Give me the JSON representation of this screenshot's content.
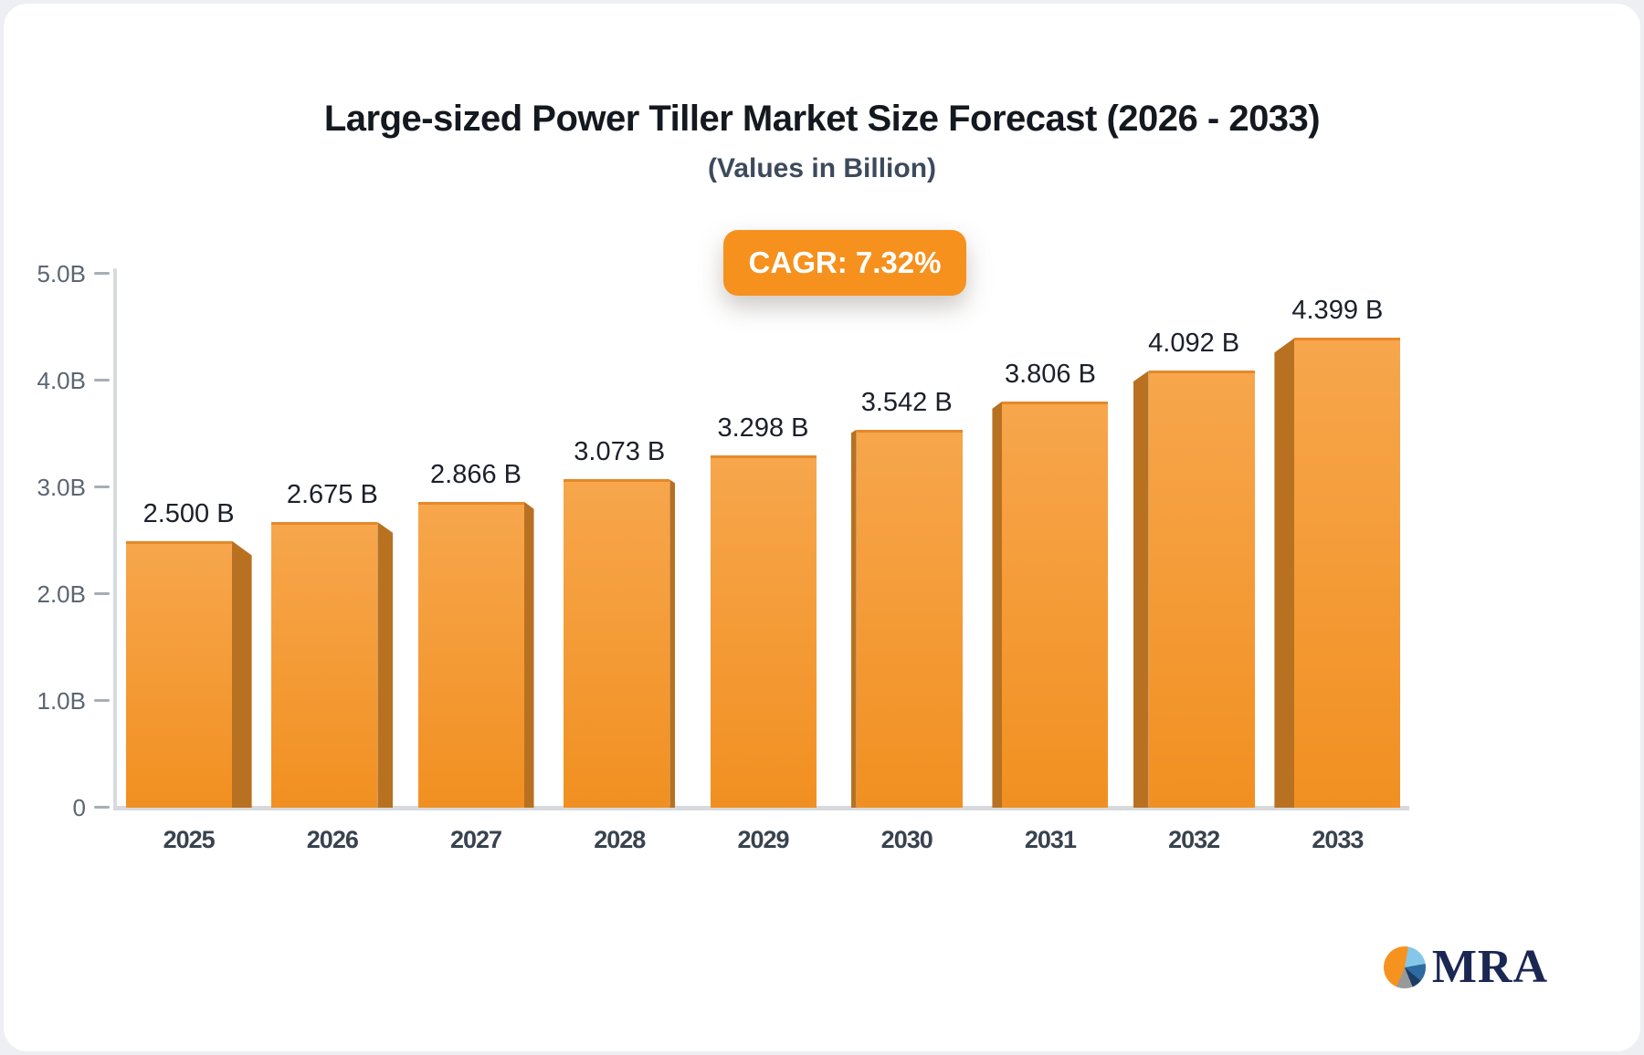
{
  "header": {
    "title": "Large-sized Power Tiller Market Size Forecast (2026 - 2033)",
    "subtitle": "(Values in Billion)"
  },
  "badge": {
    "label": "CAGR: 7.32%",
    "color": "#f6911e"
  },
  "chart_data": {
    "type": "bar",
    "title": "Large-sized Power Tiller Market Size Forecast (2026 - 2033)",
    "subtitle": "(Values in Billion)",
    "unit": "Billion",
    "categories": [
      "2025",
      "2026",
      "2027",
      "2028",
      "2029",
      "2030",
      "2031",
      "2032",
      "2033"
    ],
    "values": [
      2.5,
      2.675,
      2.866,
      3.073,
      3.298,
      3.542,
      3.806,
      4.092,
      4.399
    ],
    "data_labels": [
      "2.500 B",
      "2.675 B",
      "2.866 B",
      "3.073 B",
      "3.298 B",
      "3.542 B",
      "3.806 B",
      "4.092 B",
      "4.399 B"
    ],
    "ylim": [
      0,
      5
    ],
    "y_ticks": [
      {
        "label": "5.0B",
        "value": 5.0
      },
      {
        "label": "4.0B",
        "value": 4.0
      },
      {
        "label": "3.0B",
        "value": 3.0
      },
      {
        "label": "2.0B",
        "value": 2.0
      },
      {
        "label": "1.0B",
        "value": 1.0
      },
      {
        "label": "0",
        "value": 0.0
      }
    ],
    "grid": false,
    "legend": false,
    "bar_style": {
      "face_gradient_top": "#f7a64c",
      "face_gradient_bottom": "#f19021",
      "side_color": "#b87121",
      "effect": "3d-center-perspective"
    },
    "axis_colors": {
      "axis_line": "#d6dbe1",
      "baseline": "#d8d9dd",
      "tick_label": "#5b6573",
      "category_label": "#39424f",
      "value_label": "#1b202a"
    }
  },
  "logo": {
    "text": "MRA",
    "icon": "pie-chart-icon",
    "pie_colors": [
      "#f6921e",
      "#85c7e8",
      "#2d6ba0",
      "#1c3c66",
      "#98999b"
    ],
    "text_color": "#1b2753"
  }
}
